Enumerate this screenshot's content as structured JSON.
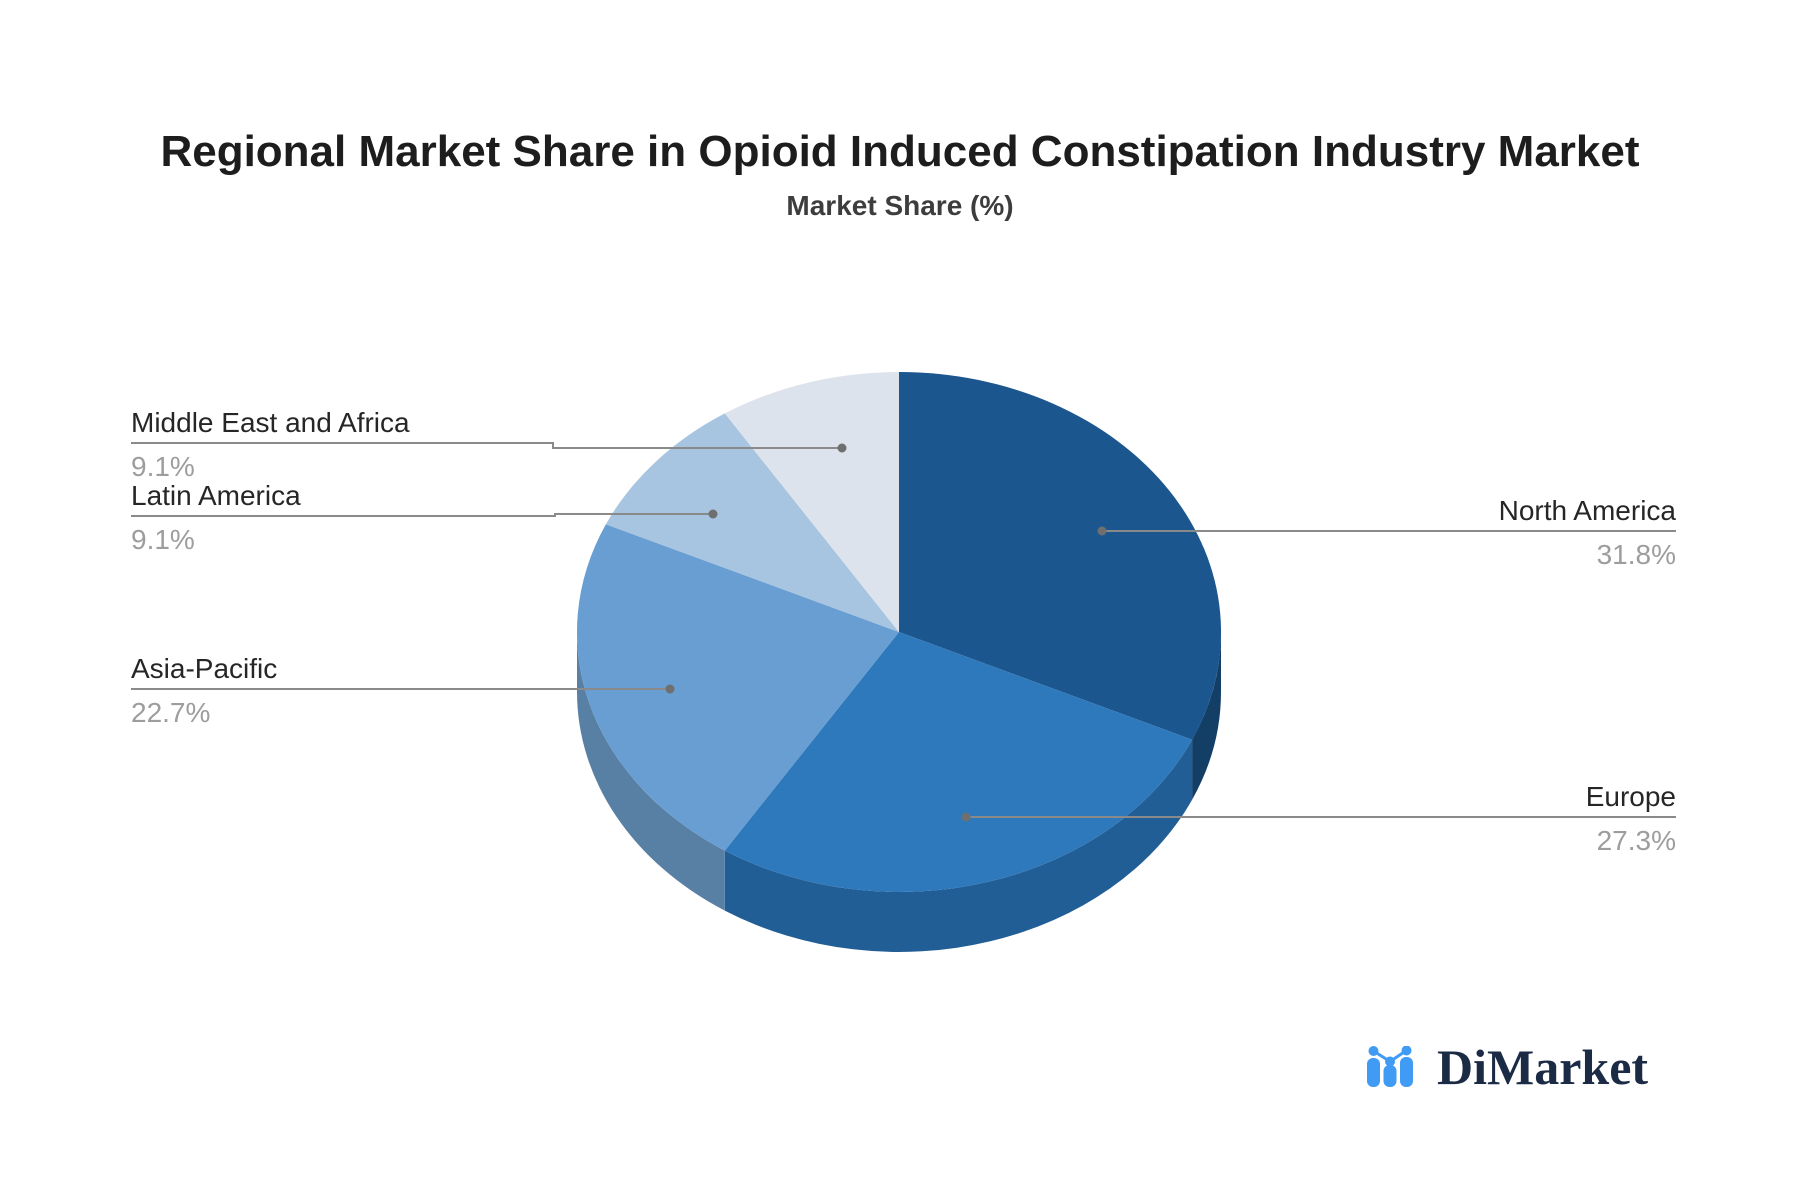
{
  "chart_data": {
    "type": "pie",
    "style": "3d-pie",
    "title": "Regional Market Share in Opioid Induced Constipation Industry Market",
    "subtitle": "Market Share (%)",
    "unit": "%",
    "total": 100,
    "start_angle_deg": 0,
    "direction": "clockwise",
    "legend_position": "none (connector labels)",
    "slices": [
      {
        "label": "North America",
        "value": 31.8,
        "pct_label": "31.8%",
        "color": "#1b568e",
        "side_color": "#133e66"
      },
      {
        "label": "Europe",
        "value": 27.3,
        "pct_label": "27.3%",
        "color": "#2e79bc",
        "side_color": "#225e96"
      },
      {
        "label": "Asia-Pacific",
        "value": 22.7,
        "pct_label": "22.7%",
        "color": "#699ed3",
        "side_color": "#587fa4"
      },
      {
        "label": "Latin America",
        "value": 9.1,
        "pct_label": "9.1%",
        "color": "#a7c4e0",
        "side_color": "#8498ad"
      },
      {
        "label": "Middle East and Africa",
        "value": 9.1,
        "pct_label": "9.1%",
        "color": "#dde3ed",
        "side_color": "#a9b2bf"
      }
    ],
    "leader_line_color": "#8a8a8a",
    "leader_dot_color": "#6f6f6f",
    "label_name_color": "#262626",
    "label_pct_color": "#9d9d9d"
  },
  "footer": {
    "brand": "DiMarket",
    "brand_color": "#1b2b45",
    "icon_color": "#3f9bf4",
    "icon": "bar-chart-with-trend-dots"
  }
}
